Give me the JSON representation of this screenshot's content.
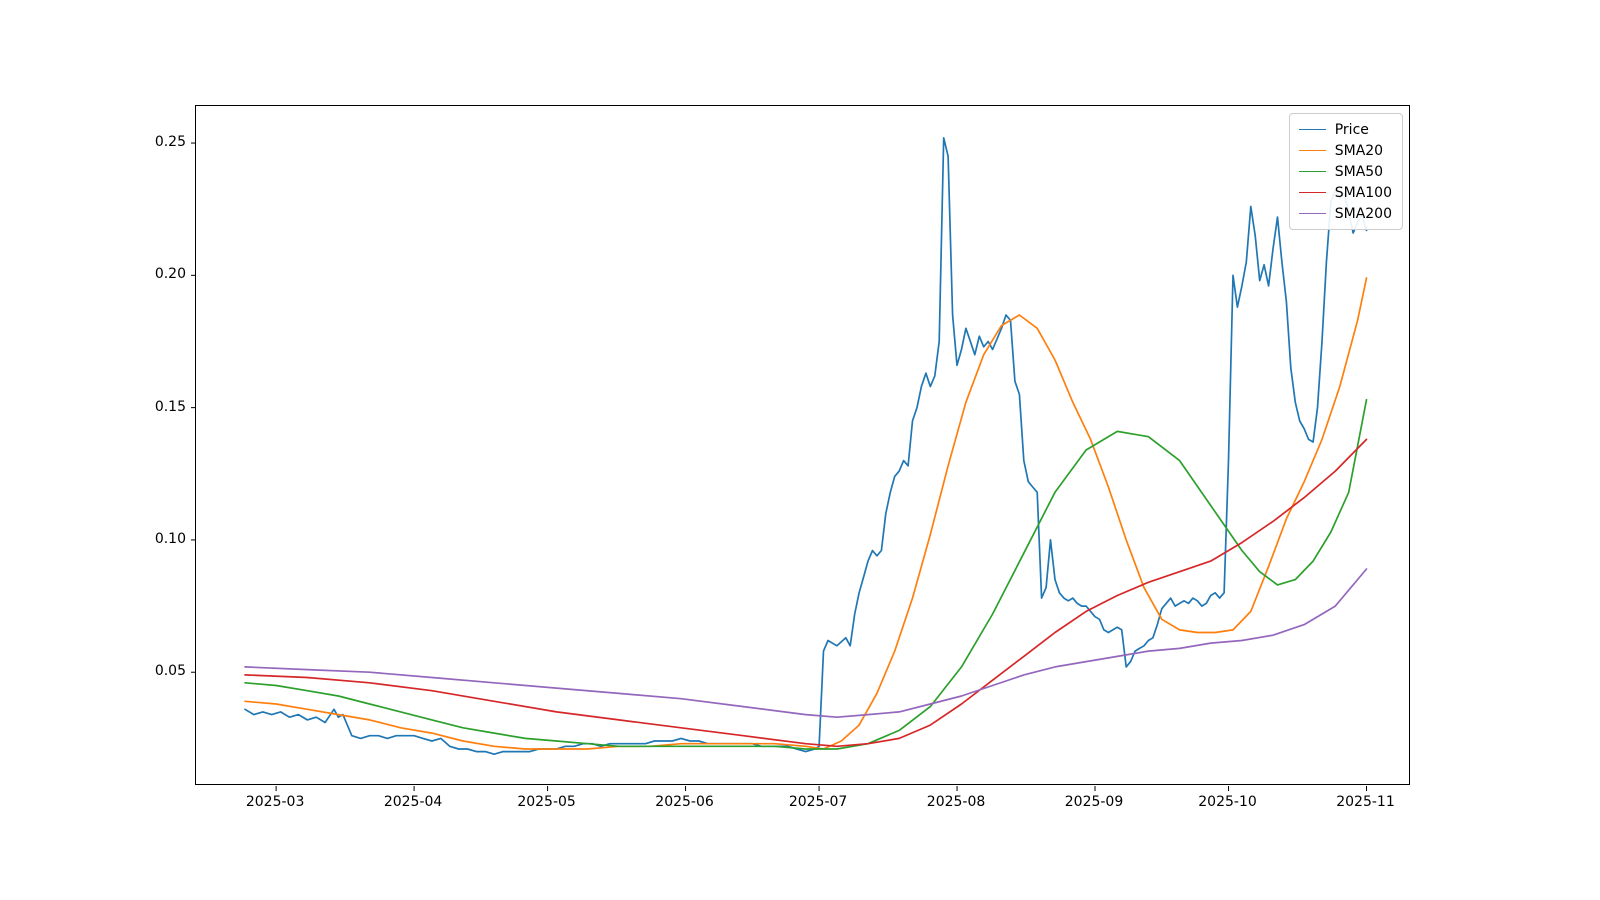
{
  "figure": {
    "background": "#ffffff",
    "axes_border_color": "#000000",
    "tick_color": "#000000"
  },
  "chart_data": {
    "type": "line",
    "title": "",
    "xlabel": "",
    "ylabel": "",
    "grid": false,
    "legend_position": "upper right",
    "xlim": [
      "2025-02-11",
      "2025-11-11"
    ],
    "ylim": [
      0.007,
      0.264
    ],
    "x_ticks": [
      {
        "date": "2025-03-01",
        "label": "2025-03"
      },
      {
        "date": "2025-04-01",
        "label": "2025-04"
      },
      {
        "date": "2025-05-01",
        "label": "2025-05"
      },
      {
        "date": "2025-06-01",
        "label": "2025-06"
      },
      {
        "date": "2025-07-01",
        "label": "2025-07"
      },
      {
        "date": "2025-08-01",
        "label": "2025-08"
      },
      {
        "date": "2025-09-01",
        "label": "2025-09"
      },
      {
        "date": "2025-10-01",
        "label": "2025-10"
      },
      {
        "date": "2025-11-01",
        "label": "2025-11"
      }
    ],
    "y_ticks": [
      {
        "value": 0.05,
        "label": "0.05"
      },
      {
        "value": 0.1,
        "label": "0.10"
      },
      {
        "value": 0.15,
        "label": "0.15"
      },
      {
        "value": 0.2,
        "label": "0.20"
      },
      {
        "value": 0.25,
        "label": "0.25"
      }
    ],
    "series": [
      {
        "name": "Price",
        "color": "#1f77b4",
        "x": [
          "2025-02-22",
          "2025-02-24",
          "2025-02-26",
          "2025-02-28",
          "2025-03-02",
          "2025-03-04",
          "2025-03-06",
          "2025-03-08",
          "2025-03-10",
          "2025-03-12",
          "2025-03-14",
          "2025-03-15",
          "2025-03-16",
          "2025-03-18",
          "2025-03-20",
          "2025-03-22",
          "2025-03-24",
          "2025-03-26",
          "2025-03-28",
          "2025-03-30",
          "2025-04-01",
          "2025-04-03",
          "2025-04-05",
          "2025-04-07",
          "2025-04-09",
          "2025-04-11",
          "2025-04-13",
          "2025-04-15",
          "2025-04-17",
          "2025-04-19",
          "2025-04-21",
          "2025-04-23",
          "2025-04-25",
          "2025-04-27",
          "2025-04-29",
          "2025-05-01",
          "2025-05-03",
          "2025-05-05",
          "2025-05-07",
          "2025-05-09",
          "2025-05-11",
          "2025-05-13",
          "2025-05-15",
          "2025-05-17",
          "2025-05-19",
          "2025-05-21",
          "2025-05-23",
          "2025-05-25",
          "2025-05-27",
          "2025-05-29",
          "2025-05-31",
          "2025-06-02",
          "2025-06-04",
          "2025-06-06",
          "2025-06-08",
          "2025-06-10",
          "2025-06-12",
          "2025-06-14",
          "2025-06-16",
          "2025-06-18",
          "2025-06-20",
          "2025-06-22",
          "2025-06-24",
          "2025-06-26",
          "2025-06-28",
          "2025-06-30",
          "2025-07-01",
          "2025-07-02",
          "2025-07-03",
          "2025-07-05",
          "2025-07-07",
          "2025-07-08",
          "2025-07-09",
          "2025-07-10",
          "2025-07-11",
          "2025-07-12",
          "2025-07-13",
          "2025-07-14",
          "2025-07-15",
          "2025-07-16",
          "2025-07-17",
          "2025-07-18",
          "2025-07-19",
          "2025-07-20",
          "2025-07-21",
          "2025-07-22",
          "2025-07-23",
          "2025-07-24",
          "2025-07-25",
          "2025-07-26",
          "2025-07-27",
          "2025-07-28",
          "2025-07-29",
          "2025-07-30",
          "2025-07-31",
          "2025-08-01",
          "2025-08-02",
          "2025-08-03",
          "2025-08-04",
          "2025-08-05",
          "2025-08-06",
          "2025-08-07",
          "2025-08-08",
          "2025-08-09",
          "2025-08-10",
          "2025-08-11",
          "2025-08-12",
          "2025-08-13",
          "2025-08-14",
          "2025-08-15",
          "2025-08-16",
          "2025-08-17",
          "2025-08-18",
          "2025-08-19",
          "2025-08-20",
          "2025-08-21",
          "2025-08-22",
          "2025-08-23",
          "2025-08-24",
          "2025-08-25",
          "2025-08-26",
          "2025-08-27",
          "2025-08-28",
          "2025-08-29",
          "2025-08-30",
          "2025-08-31",
          "2025-09-01",
          "2025-09-02",
          "2025-09-03",
          "2025-09-04",
          "2025-09-05",
          "2025-09-06",
          "2025-09-07",
          "2025-09-08",
          "2025-09-09",
          "2025-09-10",
          "2025-09-11",
          "2025-09-12",
          "2025-09-13",
          "2025-09-14",
          "2025-09-15",
          "2025-09-16",
          "2025-09-17",
          "2025-09-18",
          "2025-09-19",
          "2025-09-20",
          "2025-09-21",
          "2025-09-22",
          "2025-09-23",
          "2025-09-24",
          "2025-09-25",
          "2025-09-26",
          "2025-09-27",
          "2025-09-28",
          "2025-09-29",
          "2025-09-30",
          "2025-10-01",
          "2025-10-02",
          "2025-10-03",
          "2025-10-04",
          "2025-10-05",
          "2025-10-06",
          "2025-10-07",
          "2025-10-08",
          "2025-10-09",
          "2025-10-10",
          "2025-10-11",
          "2025-10-12",
          "2025-10-13",
          "2025-10-14",
          "2025-10-15",
          "2025-10-16",
          "2025-10-17",
          "2025-10-18",
          "2025-10-19",
          "2025-10-20",
          "2025-10-21",
          "2025-10-22",
          "2025-10-23",
          "2025-10-24",
          "2025-10-25",
          "2025-10-26",
          "2025-10-27",
          "2025-10-28",
          "2025-10-29",
          "2025-10-30",
          "2025-10-31",
          "2025-11-01"
        ],
        "y": [
          0.036,
          0.034,
          0.035,
          0.034,
          0.035,
          0.033,
          0.034,
          0.032,
          0.033,
          0.031,
          0.036,
          0.033,
          0.034,
          0.026,
          0.025,
          0.026,
          0.026,
          0.025,
          0.026,
          0.026,
          0.026,
          0.025,
          0.024,
          0.025,
          0.022,
          0.021,
          0.021,
          0.02,
          0.02,
          0.019,
          0.02,
          0.02,
          0.02,
          0.02,
          0.021,
          0.021,
          0.021,
          0.022,
          0.022,
          0.023,
          0.023,
          0.022,
          0.023,
          0.023,
          0.023,
          0.023,
          0.023,
          0.024,
          0.024,
          0.024,
          0.025,
          0.024,
          0.024,
          0.023,
          0.023,
          0.023,
          0.023,
          0.023,
          0.023,
          0.022,
          0.022,
          0.022,
          0.022,
          0.021,
          0.02,
          0.021,
          0.022,
          0.058,
          0.062,
          0.06,
          0.063,
          0.06,
          0.072,
          0.08,
          0.086,
          0.092,
          0.096,
          0.094,
          0.096,
          0.11,
          0.118,
          0.124,
          0.126,
          0.13,
          0.128,
          0.145,
          0.15,
          0.158,
          0.163,
          0.158,
          0.162,
          0.175,
          0.252,
          0.245,
          0.185,
          0.166,
          0.172,
          0.18,
          0.175,
          0.17,
          0.177,
          0.173,
          0.175,
          0.172,
          0.176,
          0.18,
          0.185,
          0.183,
          0.16,
          0.155,
          0.13,
          0.122,
          0.12,
          0.118,
          0.078,
          0.082,
          0.1,
          0.085,
          0.08,
          0.078,
          0.077,
          0.078,
          0.076,
          0.075,
          0.075,
          0.073,
          0.071,
          0.07,
          0.066,
          0.065,
          0.066,
          0.067,
          0.066,
          0.052,
          0.054,
          0.058,
          0.059,
          0.06,
          0.062,
          0.063,
          0.068,
          0.074,
          0.076,
          0.078,
          0.075,
          0.076,
          0.077,
          0.076,
          0.078,
          0.077,
          0.075,
          0.076,
          0.079,
          0.08,
          0.078,
          0.08,
          0.13,
          0.2,
          0.188,
          0.196,
          0.205,
          0.226,
          0.215,
          0.198,
          0.204,
          0.196,
          0.21,
          0.222,
          0.205,
          0.19,
          0.165,
          0.152,
          0.145,
          0.142,
          0.138,
          0.137,
          0.15,
          0.175,
          0.205,
          0.228,
          0.232,
          0.229,
          0.231,
          0.224,
          0.216,
          0.22,
          0.223,
          0.217
        ]
      },
      {
        "name": "SMA20",
        "color": "#ff7f0e",
        "x": [
          "2025-02-22",
          "2025-03-01",
          "2025-03-08",
          "2025-03-15",
          "2025-03-22",
          "2025-03-29",
          "2025-04-05",
          "2025-04-12",
          "2025-04-19",
          "2025-04-26",
          "2025-05-03",
          "2025-05-10",
          "2025-05-17",
          "2025-05-24",
          "2025-05-31",
          "2025-06-07",
          "2025-06-14",
          "2025-06-21",
          "2025-06-28",
          "2025-07-02",
          "2025-07-06",
          "2025-07-10",
          "2025-07-14",
          "2025-07-18",
          "2025-07-22",
          "2025-07-26",
          "2025-07-30",
          "2025-08-03",
          "2025-08-07",
          "2025-08-11",
          "2025-08-15",
          "2025-08-19",
          "2025-08-23",
          "2025-08-27",
          "2025-08-31",
          "2025-09-04",
          "2025-09-08",
          "2025-09-12",
          "2025-09-16",
          "2025-09-20",
          "2025-09-24",
          "2025-09-28",
          "2025-10-02",
          "2025-10-06",
          "2025-10-10",
          "2025-10-14",
          "2025-10-18",
          "2025-10-22",
          "2025-10-26",
          "2025-10-30",
          "2025-11-01"
        ],
        "y": [
          0.039,
          0.038,
          0.036,
          0.034,
          0.032,
          0.029,
          0.027,
          0.024,
          0.022,
          0.021,
          0.021,
          0.021,
          0.022,
          0.022,
          0.023,
          0.023,
          0.023,
          0.023,
          0.022,
          0.021,
          0.024,
          0.03,
          0.042,
          0.058,
          0.078,
          0.102,
          0.128,
          0.152,
          0.17,
          0.181,
          0.185,
          0.18,
          0.168,
          0.152,
          0.138,
          0.12,
          0.1,
          0.082,
          0.07,
          0.066,
          0.065,
          0.065,
          0.066,
          0.073,
          0.09,
          0.108,
          0.122,
          0.138,
          0.158,
          0.183,
          0.199
        ]
      },
      {
        "name": "SMA50",
        "color": "#2ca02c",
        "x": [
          "2025-02-22",
          "2025-03-01",
          "2025-03-08",
          "2025-03-15",
          "2025-03-22",
          "2025-03-29",
          "2025-04-05",
          "2025-04-12",
          "2025-04-19",
          "2025-04-26",
          "2025-05-03",
          "2025-05-10",
          "2025-05-17",
          "2025-05-24",
          "2025-05-31",
          "2025-06-07",
          "2025-06-14",
          "2025-06-21",
          "2025-06-28",
          "2025-07-05",
          "2025-07-12",
          "2025-07-19",
          "2025-07-26",
          "2025-08-02",
          "2025-08-09",
          "2025-08-16",
          "2025-08-23",
          "2025-08-30",
          "2025-09-06",
          "2025-09-13",
          "2025-09-20",
          "2025-09-27",
          "2025-10-04",
          "2025-10-08",
          "2025-10-12",
          "2025-10-16",
          "2025-10-20",
          "2025-10-24",
          "2025-10-28",
          "2025-11-01"
        ],
        "y": [
          0.046,
          0.045,
          0.043,
          0.041,
          0.038,
          0.035,
          0.032,
          0.029,
          0.027,
          0.025,
          0.024,
          0.023,
          0.022,
          0.022,
          0.022,
          0.022,
          0.022,
          0.022,
          0.021,
          0.021,
          0.023,
          0.028,
          0.037,
          0.052,
          0.072,
          0.095,
          0.118,
          0.134,
          0.141,
          0.139,
          0.13,
          0.113,
          0.096,
          0.088,
          0.083,
          0.085,
          0.092,
          0.103,
          0.118,
          0.153
        ]
      },
      {
        "name": "SMA100",
        "color": "#d62728",
        "x": [
          "2025-02-22",
          "2025-03-08",
          "2025-03-22",
          "2025-04-05",
          "2025-04-19",
          "2025-05-03",
          "2025-05-17",
          "2025-05-31",
          "2025-06-14",
          "2025-06-28",
          "2025-07-05",
          "2025-07-12",
          "2025-07-19",
          "2025-07-26",
          "2025-08-02",
          "2025-08-09",
          "2025-08-16",
          "2025-08-23",
          "2025-08-30",
          "2025-09-06",
          "2025-09-13",
          "2025-09-20",
          "2025-09-27",
          "2025-10-04",
          "2025-10-11",
          "2025-10-18",
          "2025-10-25",
          "2025-11-01"
        ],
        "y": [
          0.049,
          0.048,
          0.046,
          0.043,
          0.039,
          0.035,
          0.032,
          0.029,
          0.026,
          0.023,
          0.022,
          0.023,
          0.025,
          0.03,
          0.038,
          0.047,
          0.056,
          0.065,
          0.073,
          0.079,
          0.084,
          0.088,
          0.092,
          0.099,
          0.107,
          0.116,
          0.126,
          0.138
        ]
      },
      {
        "name": "SMA200",
        "color": "#9467bd",
        "x": [
          "2025-02-22",
          "2025-03-08",
          "2025-03-22",
          "2025-04-05",
          "2025-04-19",
          "2025-05-03",
          "2025-05-17",
          "2025-05-31",
          "2025-06-14",
          "2025-06-28",
          "2025-07-05",
          "2025-07-12",
          "2025-07-19",
          "2025-07-26",
          "2025-08-02",
          "2025-08-09",
          "2025-08-16",
          "2025-08-23",
          "2025-08-30",
          "2025-09-06",
          "2025-09-13",
          "2025-09-20",
          "2025-09-27",
          "2025-10-04",
          "2025-10-11",
          "2025-10-18",
          "2025-10-25",
          "2025-11-01"
        ],
        "y": [
          0.052,
          0.051,
          0.05,
          0.048,
          0.046,
          0.044,
          0.042,
          0.04,
          0.037,
          0.034,
          0.033,
          0.034,
          0.035,
          0.038,
          0.041,
          0.045,
          0.049,
          0.052,
          0.054,
          0.056,
          0.058,
          0.059,
          0.061,
          0.062,
          0.064,
          0.068,
          0.075,
          0.089
        ]
      }
    ]
  }
}
